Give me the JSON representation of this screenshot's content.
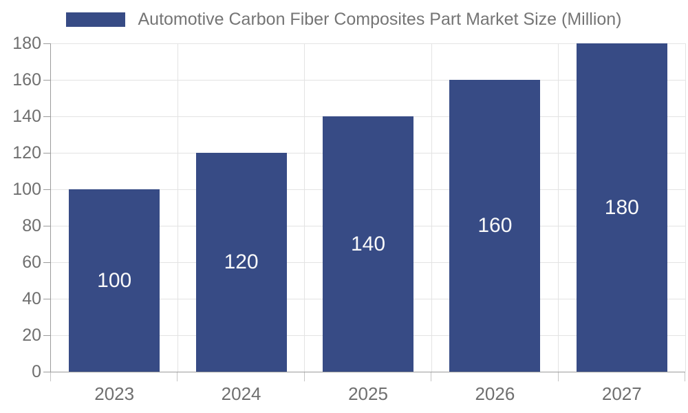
{
  "chart_data": {
    "type": "bar",
    "title": "",
    "categories": [
      "2023",
      "2024",
      "2025",
      "2026",
      "2027"
    ],
    "series": [
      {
        "name": "Automotive Carbon Fiber Composites Part Market Size (Million)",
        "values": [
          100,
          120,
          140,
          160,
          180
        ]
      }
    ],
    "xlabel": "",
    "ylabel": "",
    "ylim": [
      0,
      180
    ],
    "yticks": [
      0,
      20,
      40,
      60,
      80,
      100,
      120,
      140,
      160,
      180
    ],
    "grid": true,
    "legend_position": "top-center",
    "bar_value_labels": "centered-inside-bar"
  },
  "colors": {
    "bar": "#374B85",
    "grid": "#E3E3E3",
    "axis": "#9A9A9A",
    "x_tick": "#C4C4C4",
    "tick_label": "#6F6F6F",
    "legend_text": "#757575",
    "bar_value_label": "#FAFAFA",
    "background": "#FFFFFF"
  }
}
